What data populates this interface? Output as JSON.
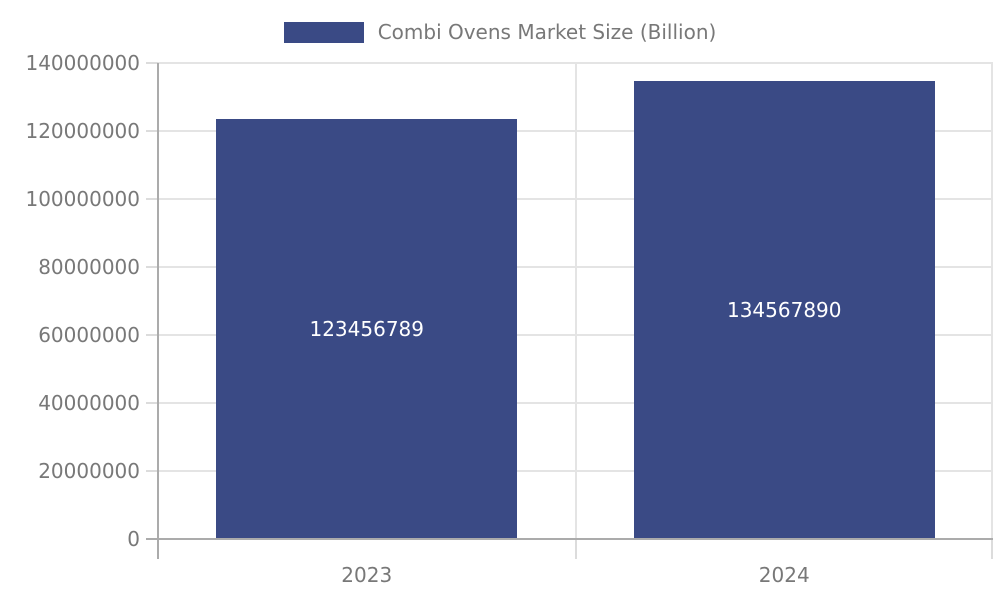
{
  "legend": {
    "label": "Combi Ovens Market Size (Billion)"
  },
  "chart_data": {
    "type": "bar",
    "title": "Combi Ovens Market Size (Billion)",
    "categories": [
      "2023",
      "2024"
    ],
    "series": [
      {
        "name": "Combi Ovens Market Size (Billion)",
        "values": [
          123456789,
          134567890
        ]
      }
    ],
    "bar_labels": [
      "123456789",
      "134567890"
    ],
    "bar_label_position": "inside-center",
    "xlabel": "",
    "ylabel": "",
    "ylim": [
      0,
      140000000
    ],
    "ytick_step": 20000000,
    "ytick_labels": [
      "0",
      "20000000",
      "40000000",
      "60000000",
      "80000000",
      "100000000",
      "120000000",
      "140000000"
    ],
    "grid": true,
    "legend_position": "top-center",
    "colors": {
      "bar": "#3A4A85",
      "bar_label": "#ffffff",
      "axis_line": "#ababab",
      "grid_line": "#e4e4e4",
      "tick_line": "#dcdcdc",
      "tick_text": "#787878",
      "legend_text": "#787878",
      "background": "#ffffff"
    }
  }
}
